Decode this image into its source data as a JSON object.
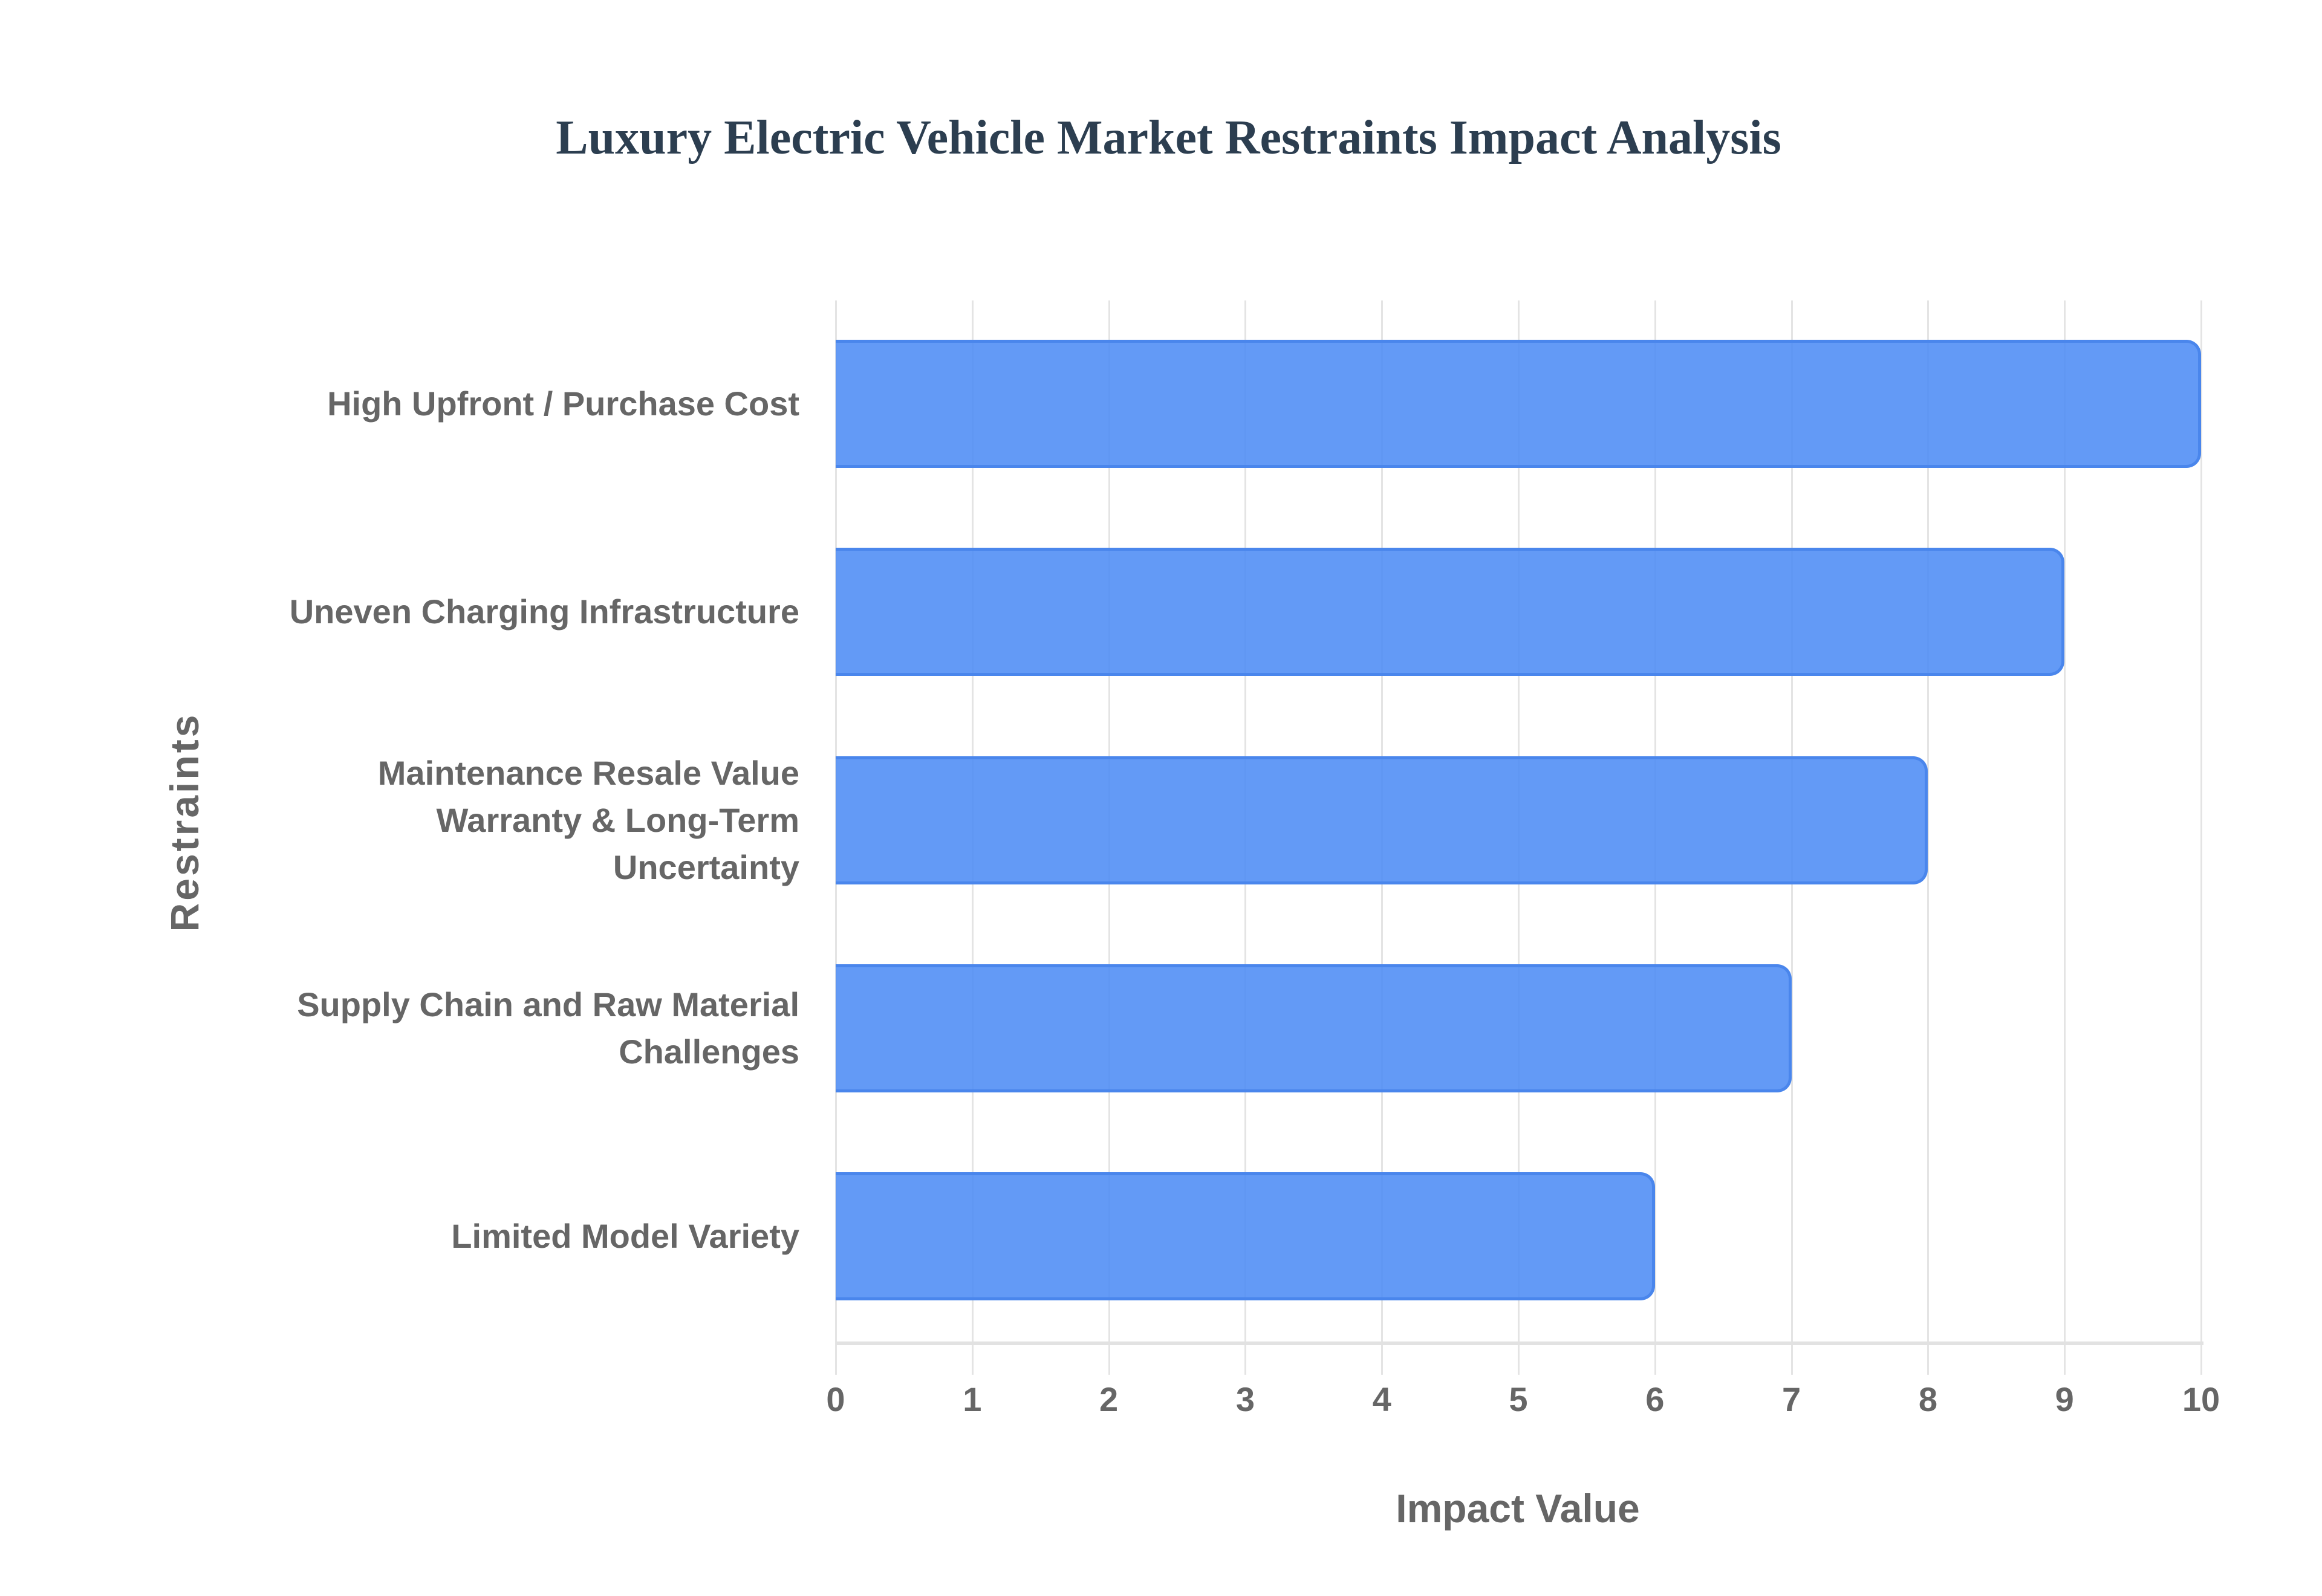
{
  "chart_data": {
    "type": "bar",
    "orientation": "horizontal",
    "title": "Luxury Electric Vehicle Market Restraints Impact Analysis",
    "xlabel": "Impact Value",
    "ylabel": "Restraints",
    "categories": [
      "High Upfront / Purchase Cost",
      "Uneven Charging Infrastructure",
      "Maintenance Resale Value Warranty & Long-Term Uncertainty",
      "Supply Chain and Raw Material Challenges",
      "Limited Model Variety"
    ],
    "category_label_lines": [
      [
        "High Upfront / Purchase Cost"
      ],
      [
        "Uneven Charging Infrastructure"
      ],
      [
        "Maintenance Resale Value",
        "Warranty & Long-Term",
        "Uncertainty"
      ],
      [
        "Supply Chain and Raw Material",
        "Challenges"
      ],
      [
        "Limited Model Variety"
      ]
    ],
    "values": [
      10,
      9,
      8,
      7,
      6
    ],
    "xlim": [
      0,
      10
    ],
    "xticks": [
      "0",
      "1",
      "2",
      "3",
      "4",
      "5",
      "6",
      "7",
      "8",
      "9",
      "10"
    ],
    "grid": true,
    "legend": null,
    "bar_color": "#5b97f5",
    "bar_border_color": "#4a86ec"
  },
  "title": "Luxury Electric Vehicle Market Restraints Impact Analysis",
  "axes": {
    "x_title": "Impact Value",
    "y_title": "Restraints",
    "x_ticks": [
      "0",
      "1",
      "2",
      "3",
      "4",
      "5",
      "6",
      "7",
      "8",
      "9",
      "10"
    ]
  },
  "bars": [
    {
      "label_lines": [
        "High Upfront / Purchase Cost"
      ],
      "value": 10
    },
    {
      "label_lines": [
        "Uneven Charging Infrastructure"
      ],
      "value": 9
    },
    {
      "label_lines": [
        "Maintenance Resale Value",
        "Warranty & Long-Term",
        "Uncertainty"
      ],
      "value": 8
    },
    {
      "label_lines": [
        "Supply Chain and Raw Material",
        "Challenges"
      ],
      "value": 7
    },
    {
      "label_lines": [
        "Limited Model Variety"
      ],
      "value": 6
    }
  ]
}
